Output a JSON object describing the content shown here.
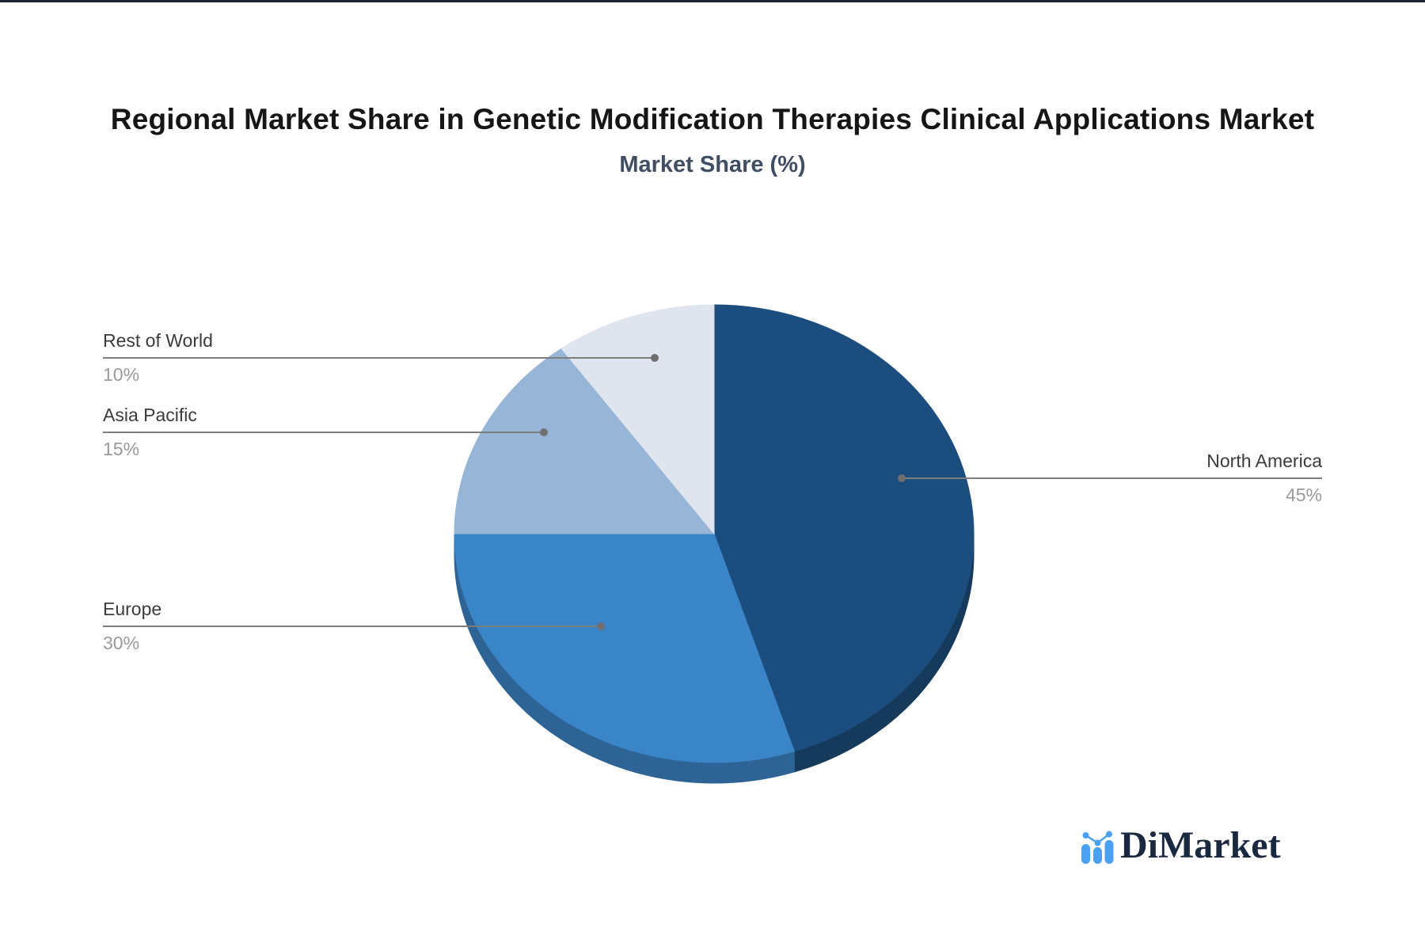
{
  "title": "Regional Market Share in Genetic Modification Therapies Clinical Applications Market",
  "subtitle": "Market Share (%)",
  "chart_data": {
    "type": "pie",
    "style": "3d",
    "title": "Regional Market Share in Genetic Modification Therapies Clinical Applications Market",
    "subtitle": "Market Share (%)",
    "unit": "%",
    "start_angle_deg": 0,
    "clockwise": true,
    "legend_position": "callout-labels",
    "segments": [
      {
        "label": "North America",
        "value": 45,
        "display": "45%",
        "color": "#1b4e7e",
        "side_color": "#163a5b"
      },
      {
        "label": "Europe",
        "value": 30,
        "display": "30%",
        "color": "#3a85c7",
        "side_color": "#2d6495"
      },
      {
        "label": "Asia Pacific",
        "value": 15,
        "display": "15%",
        "color": "#97b5d7",
        "side_color": "#8aabce"
      },
      {
        "label": "Rest of World",
        "value": 10,
        "display": "10%",
        "color": "#dfe5ef",
        "side_color": "#ccd5e2"
      }
    ]
  },
  "callouts": [
    {
      "label": "Rest of World",
      "value": "10%"
    },
    {
      "label": "Asia Pacific",
      "value": "15%"
    },
    {
      "label": "Europe",
      "value": "30%"
    },
    {
      "label": "North America",
      "value": "45%"
    }
  ],
  "logo": {
    "text": "DiMarket",
    "icon": "bar-chart-icon"
  },
  "theme": {
    "background": "#ffffff",
    "top_border": "#1a2430",
    "title": "#161616",
    "subtitle": "#3f4e63",
    "label_name": "#3b3b3b",
    "label_value": "#9a9a9a",
    "leader_line": "#7d7d7d",
    "leader_dot": "#6f6f6f",
    "logo_icon": "#4ba1f1",
    "logo_text": "#1b2940"
  }
}
